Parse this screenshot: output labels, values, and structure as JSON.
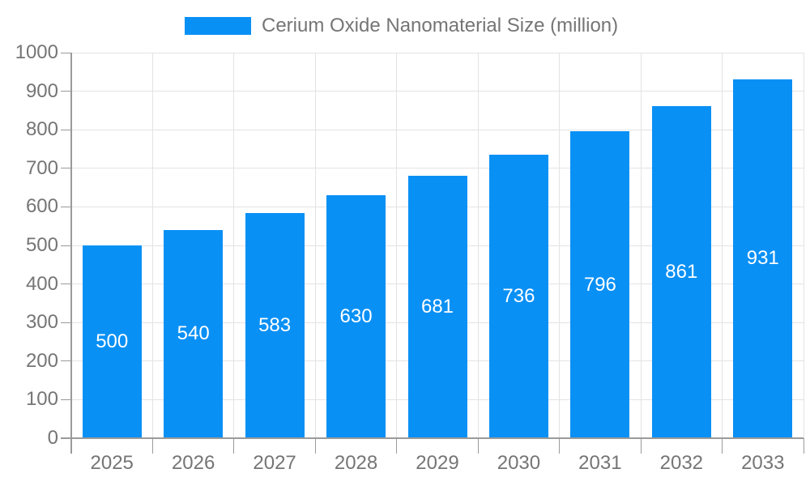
{
  "chart_data": {
    "type": "bar",
    "legend": {
      "label": "Cerium Oxide Nanomaterial Size (million)",
      "position": "top-center"
    },
    "categories": [
      "2025",
      "2026",
      "2027",
      "2028",
      "2029",
      "2030",
      "2031",
      "2032",
      "2033"
    ],
    "values": [
      500,
      540,
      583,
      630,
      681,
      736,
      796,
      861,
      931
    ],
    "xlabel": "",
    "ylabel": "",
    "ylim": [
      0,
      1000
    ],
    "ytick_step": 100,
    "grid": true,
    "colors": {
      "bar": "#0990F5",
      "value_label": "#ffffff",
      "axis_label": "#757575",
      "legend_label": "#757575",
      "gridline": "#e3e3e3",
      "axis_line": "#9a9a9a"
    }
  }
}
